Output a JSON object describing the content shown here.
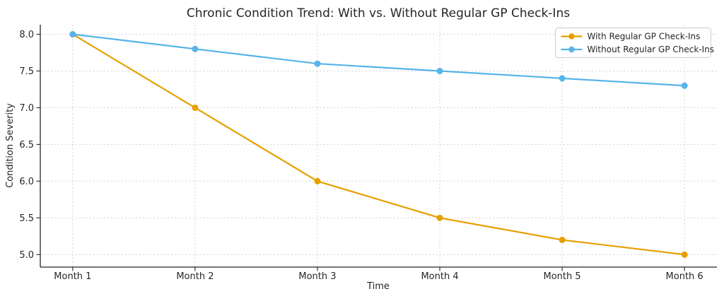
{
  "figure": {
    "background": "#ffffff"
  },
  "chart_data": {
    "type": "line",
    "title": "Chronic Condition Trend: With vs. Without Regular GP Check-Ins",
    "xlabel": "Time",
    "ylabel": "Condition Severity",
    "categories": [
      "Month 1",
      "Month 2",
      "Month 3",
      "Month 4",
      "Month 5",
      "Month 6"
    ],
    "x": [
      1,
      2,
      3,
      4,
      5,
      6
    ],
    "series": [
      {
        "name": "With Regular GP Check-Ins",
        "color": "#E69F00",
        "values": [
          8.0,
          7.0,
          6.0,
          5.5,
          5.2,
          5.0
        ]
      },
      {
        "name": "Without Regular GP Check-Ins",
        "color": "#56B4E9",
        "values": [
          8.0,
          7.8,
          7.6,
          7.5,
          7.4,
          7.3
        ]
      }
    ],
    "yticks": [
      5.0,
      5.5,
      6.0,
      6.5,
      7.0,
      7.5,
      8.0
    ],
    "ytick_labels": [
      "5.0",
      "5.5",
      "6.0",
      "6.5",
      "7.0",
      "7.5",
      "8.0"
    ],
    "ylim": [
      4.83,
      8.13
    ],
    "xlim": [
      0.735,
      6.265
    ],
    "grid": true,
    "grid_style": "dashed",
    "grid_color": "#d4d4d4",
    "axis_color": "#262626",
    "legend": {
      "position": "upper right",
      "border_color": "#cccccc",
      "background": "#ffffff"
    }
  }
}
